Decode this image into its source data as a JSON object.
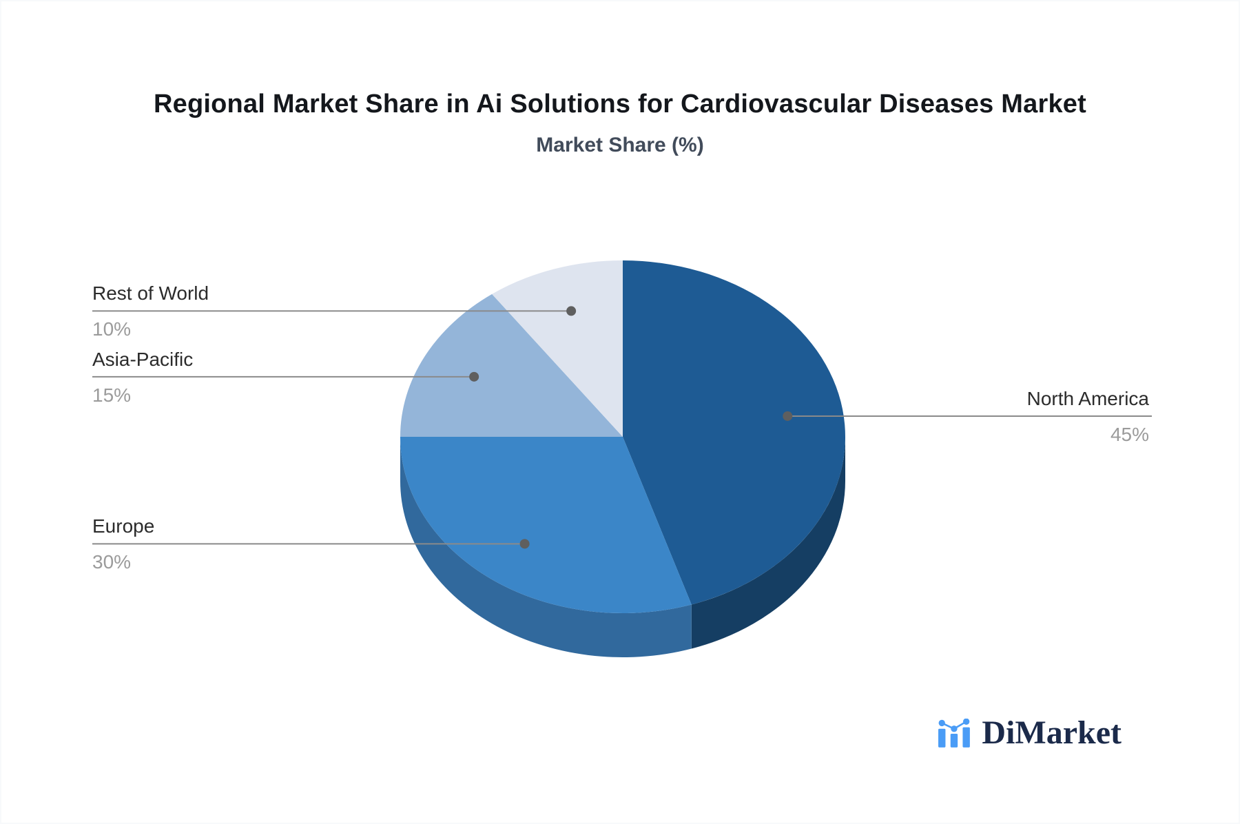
{
  "header": {
    "title": "Regional Market Share in Ai Solutions for Cardiovascular Diseases Market",
    "subtitle": "Market Share (%)"
  },
  "chart_data": {
    "type": "pie",
    "style": "3d",
    "title": "Regional Market Share in Ai Solutions for Cardiovascular Diseases Market",
    "subtitle": "Market Share (%)",
    "unit": "%",
    "start_angle_deg": 0,
    "direction": "clockwise",
    "legend_position": "callout-labels",
    "categories": [
      "North America",
      "Europe",
      "Asia-Pacific",
      "Rest of World"
    ],
    "values": [
      45,
      30,
      15,
      10
    ],
    "slices": [
      {
        "label": "North America",
        "value": 45,
        "value_text": "45%",
        "color": "#1e5b94",
        "side_color": "#153e63",
        "label_side": "right"
      },
      {
        "label": "Europe",
        "value": 30,
        "value_text": "30%",
        "color": "#3b86c8",
        "side_color": "#31699d",
        "label_side": "left"
      },
      {
        "label": "Asia-Pacific",
        "value": 15,
        "value_text": "15%",
        "color": "#94b5d9",
        "side_color": "#7fa3c9",
        "label_side": "left"
      },
      {
        "label": "Rest of World",
        "value": 10,
        "value_text": "10%",
        "color": "#dee4ef",
        "side_color": "#c4cede",
        "label_side": "left"
      }
    ]
  },
  "branding": {
    "name": "DiMarket"
  },
  "colors": {
    "background": "#ffffff",
    "title": "#14171c",
    "subtitle": "#414b5a",
    "label_text": "#2b2b2b",
    "value_text": "#9b9b9b",
    "leader_line": "#8a8a8a",
    "leader_dot": "#5f5f5f",
    "logo_text": "#1b2a4a",
    "logo_accent": "#4a9cf6"
  }
}
